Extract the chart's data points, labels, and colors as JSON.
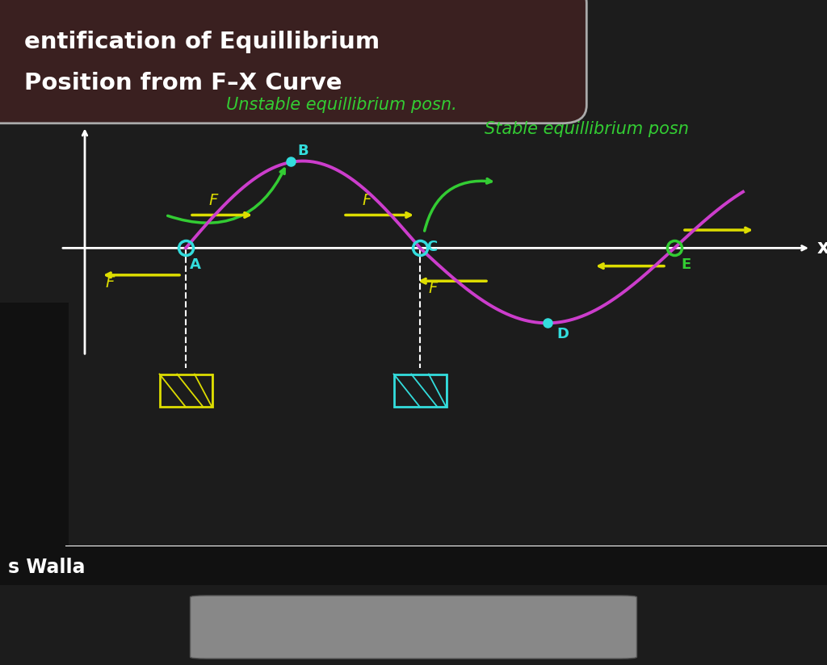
{
  "bg_color": "#1c1c1c",
  "title_bg": "#3a2020",
  "title_text1": "entification of Equillibrium",
  "title_text2": "Position from F–X Curve",
  "curve_color": "#cc3dcc",
  "green_arc_color": "#33cc33",
  "axis_color": "#ffffff",
  "arrow_color": "#dddd00",
  "label_color_green": "#33cc33",
  "label_color_cyan": "#33dddd",
  "point_color_cyan": "#33dddd",
  "point_color_green": "#33cc33",
  "unstable_text": "Unstable equillibrium posn.",
  "stable_text": "Stable equillibrium posn",
  "bottom_bar_color": "#2a2a2a",
  "toolbar_bg": "#cccccc"
}
